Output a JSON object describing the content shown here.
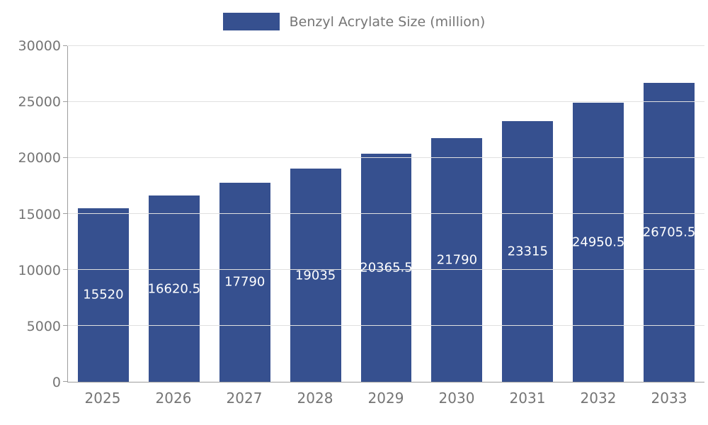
{
  "chart_data": {
    "type": "bar",
    "title": "",
    "legend": "Benzyl Acrylate Size (million)",
    "categories": [
      "2025",
      "2026",
      "2027",
      "2028",
      "2029",
      "2030",
      "2031",
      "2032",
      "2033"
    ],
    "values": [
      15520,
      16620.5,
      17790,
      19035,
      20365.5,
      21790,
      23315,
      24950.5,
      26705.5
    ],
    "value_labels": [
      "15520",
      "16620.5",
      "17790",
      "19035",
      "20365.5",
      "21790",
      "23315",
      "24950.5",
      "26705.5"
    ],
    "xlabel": "",
    "ylabel": "",
    "ylim": [
      0,
      30000
    ],
    "ytick_step": 5000,
    "ytick_labels": [
      "0",
      "5000",
      "10000",
      "15000",
      "20000",
      "25000",
      "30000"
    ],
    "grid": true,
    "legend_position": "top-center",
    "colors": {
      "bar": "#36508F",
      "value_label": "#ffffff",
      "axis_text": "#757575",
      "axis_line": "#9e9e9e",
      "gridline": "#e0e0e0",
      "background": "#ffffff"
    }
  }
}
